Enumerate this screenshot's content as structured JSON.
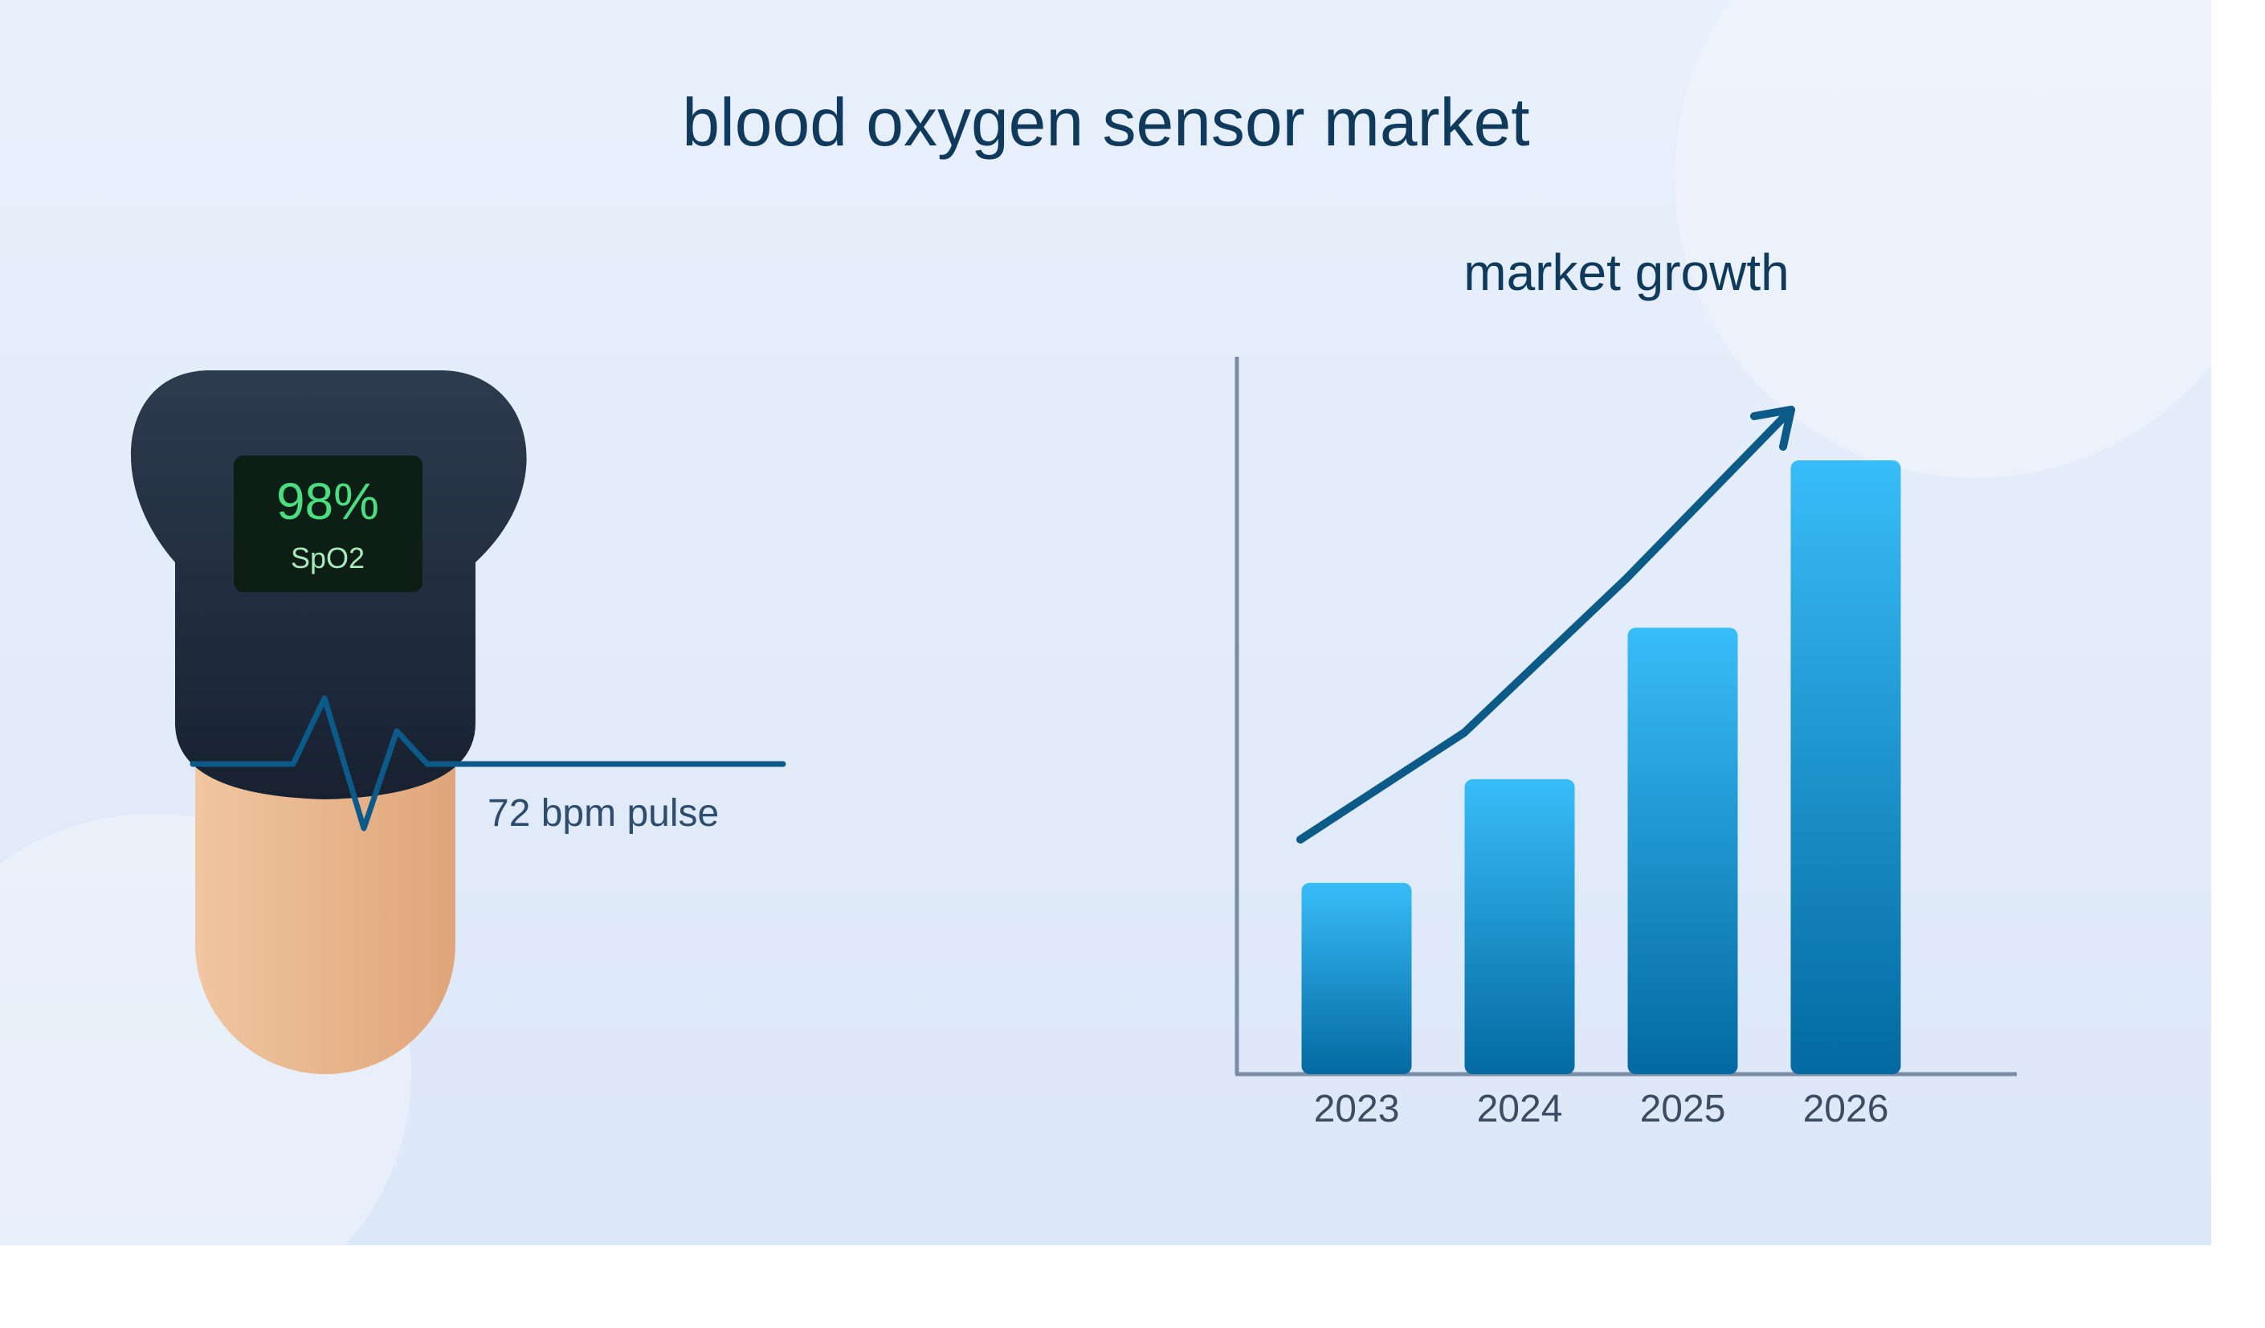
{
  "page": {
    "title": "blood oxygen sensor market"
  },
  "oximeter": {
    "reading_value": "98%",
    "reading_label": "SpO2",
    "pulse_label": "72 bpm pulse"
  },
  "chart_data": {
    "type": "bar",
    "title": "market growth",
    "categories": [
      "2023",
      "2024",
      "2025",
      "2026"
    ],
    "values": [
      24,
      37,
      56,
      77
    ],
    "ylim": [
      0,
      90
    ],
    "xlabel": "",
    "ylabel": "",
    "grid": false,
    "trend_arrow": true
  },
  "colors": {
    "background_top": "#e8f0fb",
    "background_bottom": "#dce7f8",
    "title": "#0f3a5c",
    "bar_top": "#38bdf8",
    "bar_bottom": "#0369a1",
    "trend_line": "#0b5a87",
    "axis": "#7b8ca5",
    "tick_label": "#3b4c63",
    "device_dark": "#1b2533",
    "screen": "#0d1f15",
    "screen_text": "#4ade80",
    "skin_light": "#f0c6a0",
    "skin_dark": "#e0a57a",
    "pulse_wave": "#0b5a8a",
    "pulse_text": "#2e4c6e"
  }
}
